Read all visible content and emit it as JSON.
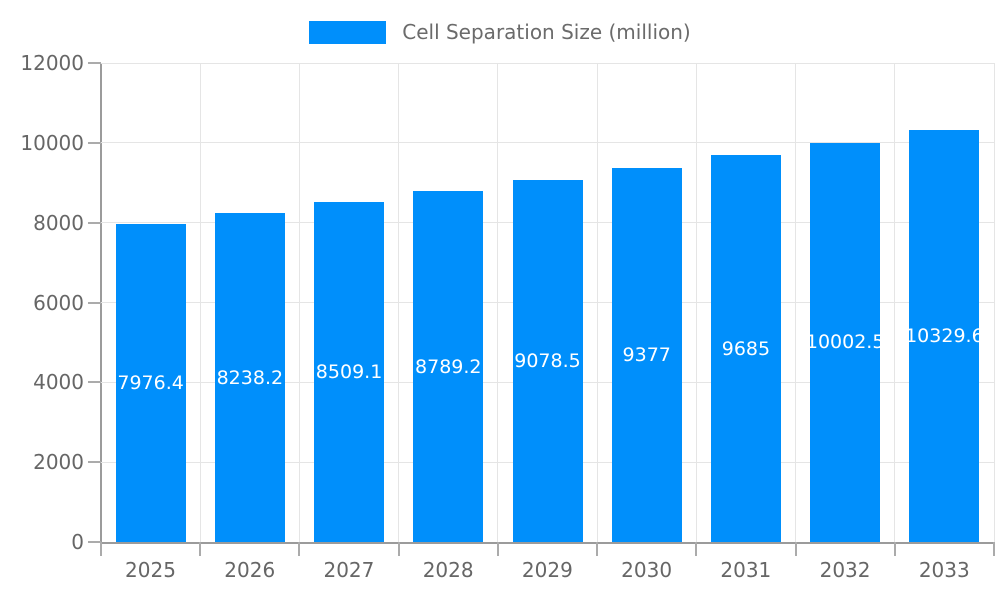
{
  "legend": {
    "label": "Cell Separation Size (million)"
  },
  "chart_data": {
    "type": "bar",
    "title": "Cell Separation Size (million)",
    "categories": [
      "2025",
      "2026",
      "2027",
      "2028",
      "2029",
      "2030",
      "2031",
      "2032",
      "2033"
    ],
    "values": [
      7976.4,
      8238.2,
      8509.1,
      8789.2,
      9078.5,
      9377,
      9685,
      10002.5,
      10329.6
    ],
    "value_labels": [
      "7976.4",
      "8238.2",
      "8509.1",
      "8789.2",
      "9078.5",
      "9377",
      "9685",
      "10002.5",
      "10329.6"
    ],
    "series_name": "Cell Separation Size (million)",
    "xlabel": "",
    "ylabel": "",
    "ylim": [
      0,
      12000
    ],
    "ytick_interval": 2000,
    "yticks": [
      "0",
      "2000",
      "4000",
      "6000",
      "8000",
      "10000",
      "12000"
    ],
    "grid": true,
    "legend_position": "top"
  },
  "colors": {
    "bar": "#008FFB",
    "grid": "#e5e5e5",
    "axis": "#9b9b9b",
    "tick": "#ababab",
    "axis_label": "#666666",
    "legend_text": "#6b6b6b",
    "value_label": "#ffffff",
    "background": "#ffffff"
  }
}
